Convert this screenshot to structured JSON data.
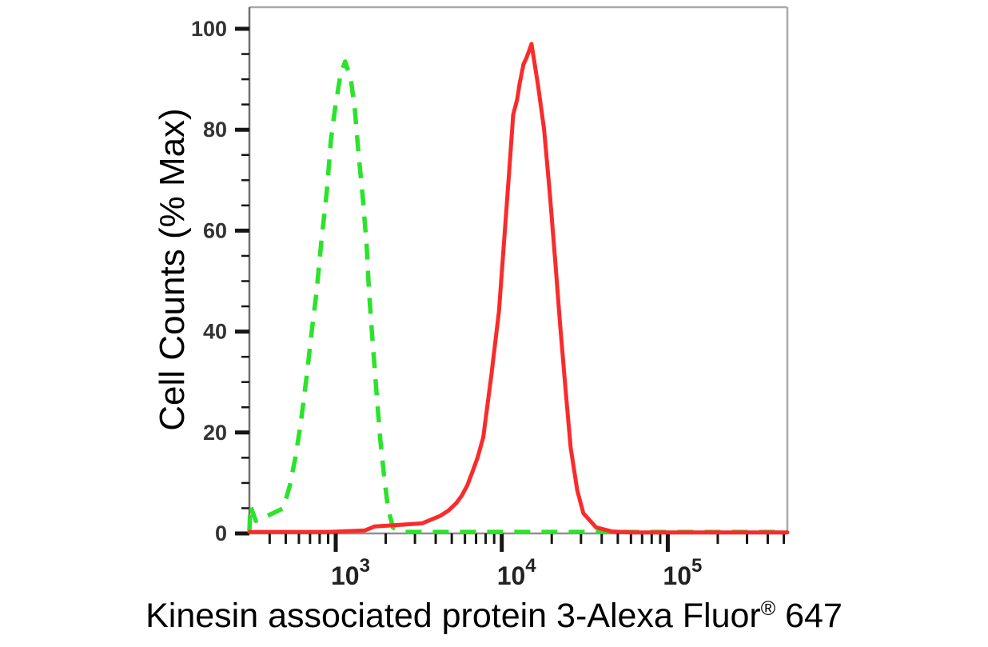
{
  "figure": {
    "background": "#ffffff"
  },
  "chart_data": {
    "type": "line",
    "subtype": "flow-cytometry-histogram",
    "title": "",
    "ylabel": "Cell Counts (% Max)",
    "xlabel_main": "Kinesin associated protein 3-Alexa Fluor",
    "xlabel_registered": "®",
    "xlabel_suffix": " 647",
    "x_scale": "log10",
    "x_range": [
      302,
      525000
    ],
    "ylim": [
      0,
      100
    ],
    "grid": false,
    "legend": null,
    "y_major_ticks": [
      0,
      20,
      40,
      60,
      80,
      100
    ],
    "y_minor_step": 5,
    "x_major_ticks": [
      {
        "value": 1000,
        "label_base": "10",
        "label_exp": "3"
      },
      {
        "value": 10000,
        "label_base": "10",
        "label_exp": "4"
      },
      {
        "value": 100000,
        "label_base": "10",
        "label_exp": "5"
      }
    ],
    "x_minor_ticks": [
      400,
      500,
      600,
      700,
      800,
      900,
      2000,
      3000,
      4000,
      5000,
      6000,
      7000,
      8000,
      9000,
      20000,
      30000,
      40000,
      50000,
      60000,
      70000,
      80000,
      90000,
      200000,
      300000,
      400000,
      500000
    ],
    "axis_colors": {
      "left": "#6f6f6f",
      "bottom": "#8f8f8f",
      "top": "#a9a9a9",
      "right": "#a9a9a9",
      "ticks": "#161616",
      "tick_labels": "#333333"
    },
    "series": [
      {
        "name": "green dashed curve (control)",
        "color": "#2be32b",
        "line_style": "dashed",
        "stroke_width": 5.5,
        "peak": {
          "x": 1140,
          "y": 93.5
        },
        "points": [
          [
            302,
            0.5
          ],
          [
            306,
            5.5
          ],
          [
            330,
            2.5
          ],
          [
            389,
            3.5
          ],
          [
            484,
            5
          ],
          [
            529,
            9.5
          ],
          [
            571,
            15
          ],
          [
            617,
            22
          ],
          [
            673,
            32
          ],
          [
            711,
            39
          ],
          [
            767,
            48
          ],
          [
            820,
            58
          ],
          [
            885,
            68
          ],
          [
            936,
            78
          ],
          [
            989,
            84
          ],
          [
            1069,
            91
          ],
          [
            1140,
            93.5
          ],
          [
            1233,
            90
          ],
          [
            1303,
            84
          ],
          [
            1374,
            75
          ],
          [
            1452,
            67
          ],
          [
            1535,
            57
          ],
          [
            1585,
            48
          ],
          [
            1660,
            39
          ],
          [
            1750,
            29
          ],
          [
            1849,
            19
          ],
          [
            1954,
            11.5
          ],
          [
            2065,
            5
          ],
          [
            2208,
            1.2
          ],
          [
            2500,
            0.3
          ],
          [
            5000,
            0.3
          ],
          [
            20000,
            0.3
          ],
          [
            100000,
            0.3
          ],
          [
            525000,
            0.3
          ]
        ]
      },
      {
        "name": "red solid curve (sample)",
        "color": "#f92b2b",
        "line_style": "solid",
        "stroke_width": 5,
        "peak": {
          "x": 15100,
          "y": 97
        },
        "points": [
          [
            302,
            0.3
          ],
          [
            900,
            0.3
          ],
          [
            1500,
            0.6
          ],
          [
            1715,
            1.4
          ],
          [
            2200,
            1.6
          ],
          [
            3311,
            2
          ],
          [
            4266,
            3.5
          ],
          [
            4764,
            4.5
          ],
          [
            5321,
            6
          ],
          [
            5741,
            7.5
          ],
          [
            6194,
            9.5
          ],
          [
            6622,
            12
          ],
          [
            7145,
            15
          ],
          [
            7727,
            19
          ],
          [
            8630,
            31
          ],
          [
            9616,
            44
          ],
          [
            10280,
            57
          ],
          [
            11092,
            72
          ],
          [
            11722,
            83
          ],
          [
            12387,
            86
          ],
          [
            12794,
            89
          ],
          [
            13521,
            93
          ],
          [
            13996,
            94
          ],
          [
            14454,
            95.2
          ],
          [
            15101,
            97
          ],
          [
            16500,
            89
          ],
          [
            18000,
            80
          ],
          [
            19500,
            67
          ],
          [
            21000,
            54
          ],
          [
            22500,
            41
          ],
          [
            24300,
            28
          ],
          [
            26000,
            17
          ],
          [
            28500,
            8.5
          ],
          [
            31000,
            4
          ],
          [
            37000,
            1.2
          ],
          [
            46000,
            0.4
          ],
          [
            60000,
            0.2
          ],
          [
            525000,
            0.2
          ]
        ]
      }
    ]
  }
}
